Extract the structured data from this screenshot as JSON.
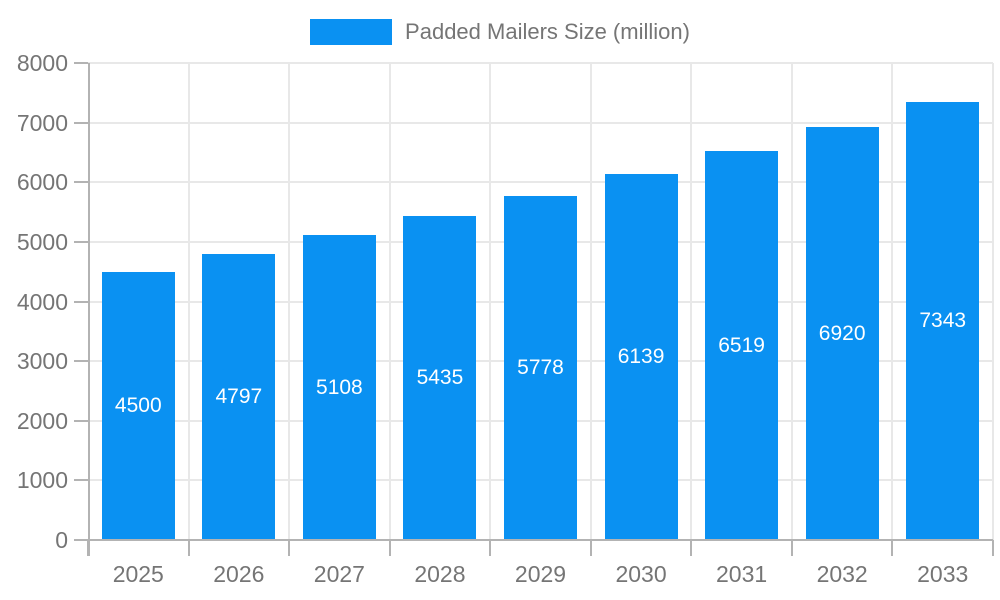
{
  "legend": {
    "label": "Padded Mailers Size (million)"
  },
  "colors": {
    "bar": "#0a91f2",
    "axis_text": "#757575",
    "bar_label_text": "#ffffff",
    "gridline": "#e8e8e8",
    "axis_line": "#b3b3b3",
    "background": "#ffffff"
  },
  "chart_data": {
    "type": "bar",
    "title": "",
    "xlabel": "",
    "ylabel": "",
    "categories": [
      "2025",
      "2026",
      "2027",
      "2028",
      "2029",
      "2030",
      "2031",
      "2032",
      "2033"
    ],
    "series": [
      {
        "name": "Padded Mailers Size (million)",
        "color": "#0a91f2",
        "values": [
          4500,
          4797,
          5108,
          5435,
          5778,
          6139,
          6519,
          6920,
          7343
        ]
      }
    ],
    "bar_value_labels_visible": true,
    "ylim": [
      0,
      8000
    ],
    "yticks": [
      0,
      1000,
      2000,
      3000,
      4000,
      5000,
      6000,
      7000,
      8000
    ],
    "grid": true,
    "legend_position": "top"
  }
}
